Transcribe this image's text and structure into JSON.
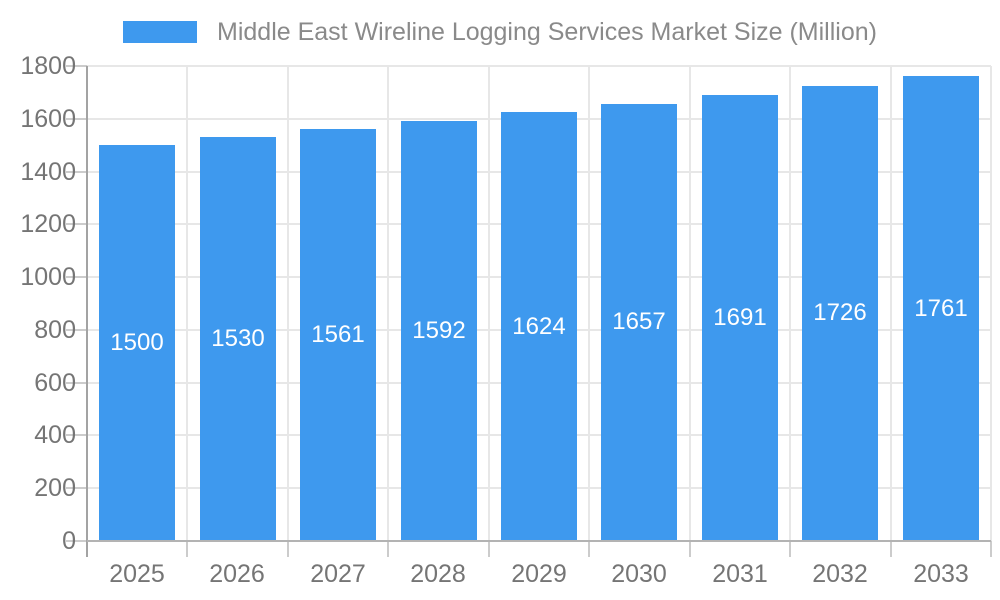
{
  "chart_data": {
    "type": "bar",
    "title": "Middle East Wireline Logging Services Market Size (Million)",
    "categories": [
      "2025",
      "2026",
      "2027",
      "2028",
      "2029",
      "2030",
      "2031",
      "2032",
      "2033"
    ],
    "values": [
      1500,
      1530,
      1561,
      1592,
      1624,
      1657,
      1691,
      1726,
      1761
    ],
    "xlabel": "",
    "ylabel": "",
    "ylim": [
      0,
      1800
    ],
    "yticks": [
      0,
      200,
      400,
      600,
      800,
      1000,
      1200,
      1400,
      1600,
      1800
    ],
    "grid": true,
    "value_label_position": "inside-center",
    "legend": {
      "position": "top-center",
      "entries": [
        "Middle East Wireline Logging Services Market Size (Million)"
      ]
    },
    "colors": {
      "bar": "#3e99ee",
      "value_label_text": "#ffffff",
      "axis_label_text": "#757575",
      "legend_text": "#8a8a8a",
      "grid_line": "#e7e7e7",
      "tick_line": "#cccccc",
      "axis_line_y": "#a3a3a3",
      "axis_line_x": "#b3b3b3",
      "background": "#ffffff"
    }
  }
}
